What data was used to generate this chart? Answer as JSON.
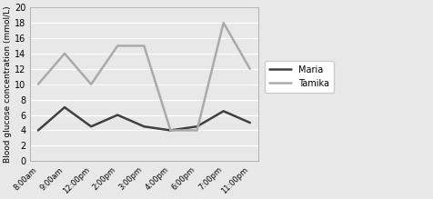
{
  "x_labels": [
    "8:00am",
    "9:00am",
    "12:00pm",
    "2:00pm",
    "3:00pm",
    "4:00pm",
    "6:00pm",
    "7:00pm",
    "11:00pm"
  ],
  "maria": [
    4,
    7,
    4.5,
    6,
    4.5,
    4,
    4.5,
    6.5,
    5
  ],
  "tamika": [
    10,
    14,
    10,
    15,
    15,
    4,
    4,
    18,
    12
  ],
  "maria_color": "#404040",
  "tamika_color": "#aaaaaa",
  "ylabel": "Blood glucose concentration (mmol/L)",
  "ylim": [
    0,
    20
  ],
  "yticks": [
    0,
    2,
    4,
    6,
    8,
    10,
    12,
    14,
    16,
    18,
    20
  ],
  "legend_labels": [
    "Maria",
    "Tamika"
  ],
  "bg_color": "#e8e8e8",
  "plot_bg": "#e8e8e8",
  "grid_color": "#ffffff",
  "legend_bg": "#ffffff"
}
